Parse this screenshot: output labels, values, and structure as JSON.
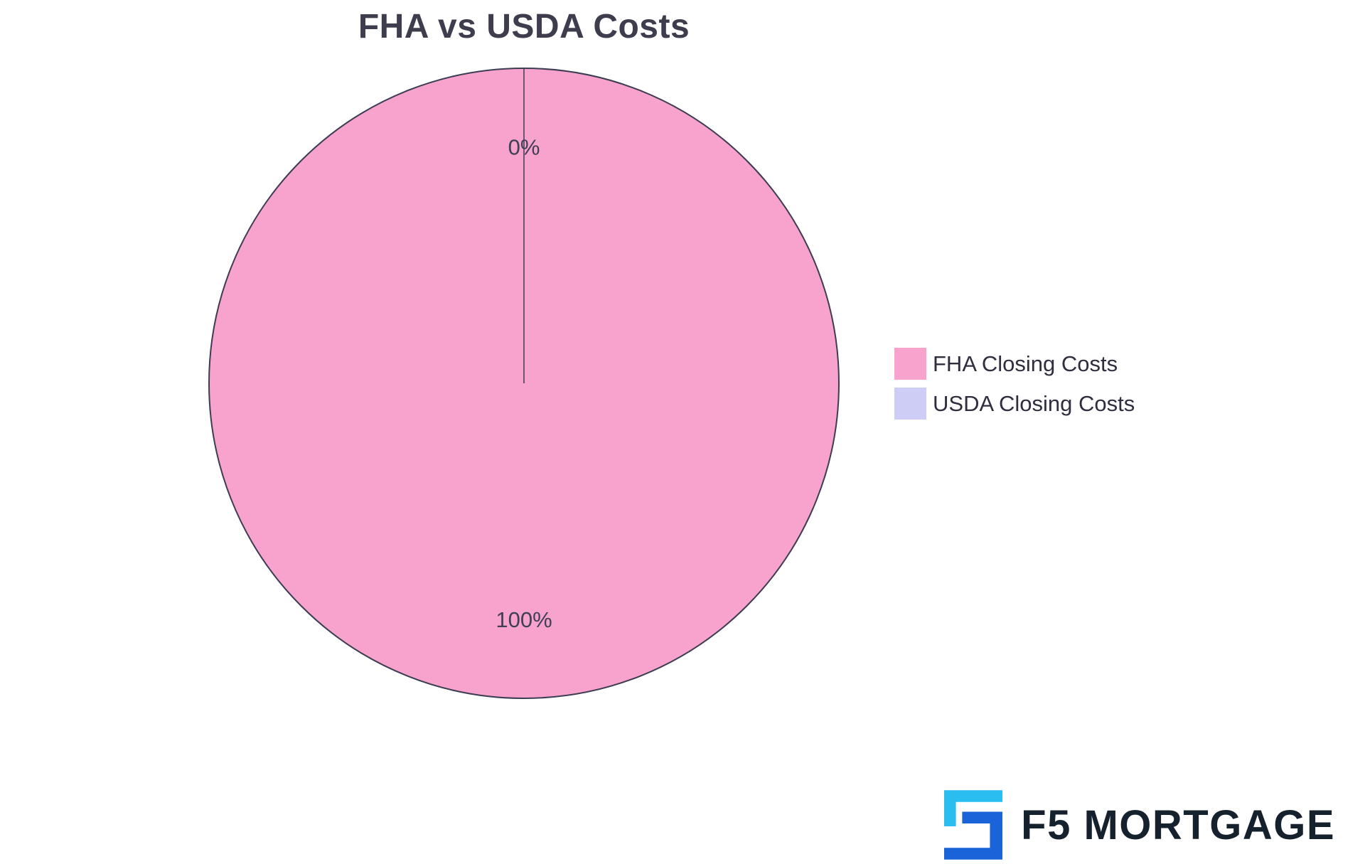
{
  "page": {
    "background": "#ffffff"
  },
  "chart_data": {
    "type": "pie",
    "title": "FHA vs USDA Costs",
    "start_angle_deg": -90,
    "direction": "clockwise",
    "stroke_color": "#3c3c52",
    "label_color": "#3f3f56",
    "legend_position": "right",
    "slices": [
      {
        "label": "FHA Closing Costs",
        "value": 100,
        "percent_label": "100%",
        "color": "#f8a3ce"
      },
      {
        "label": "USDA Closing Costs",
        "value": 0,
        "percent_label": "0%",
        "color": "#cdcdf6"
      }
    ]
  },
  "logo": {
    "name": "F5 Mortgage",
    "text": "F5 MORTGAGE",
    "icon_color_top": "#29bdf0",
    "icon_color_bottom": "#1b63d8",
    "text_color": "#15212d"
  }
}
